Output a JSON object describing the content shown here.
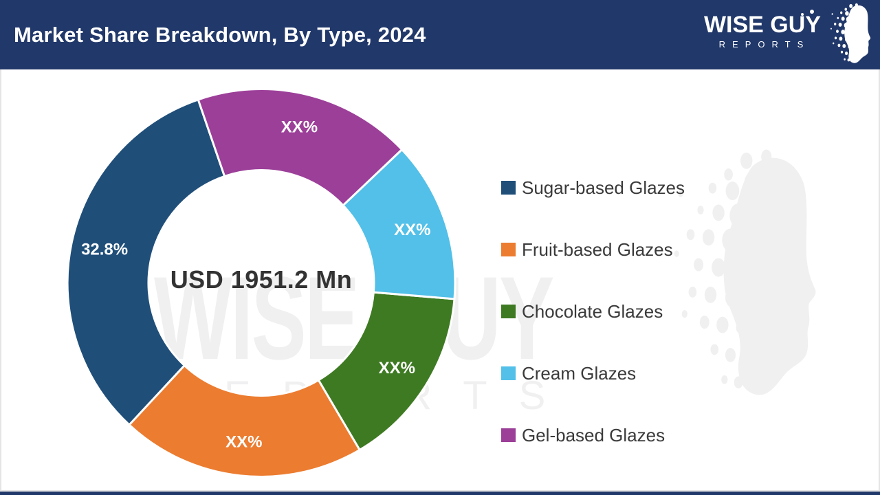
{
  "header": {
    "title": "Market Share Breakdown, By Type, 2024",
    "logo": {
      "line1": "WISE GUY",
      "line2": "REPORTS"
    }
  },
  "watermark": {
    "line1": "WISE GUY",
    "line2": "REPORTS"
  },
  "chart_data": {
    "type": "pie",
    "subtype": "donut",
    "title": "Market Share Breakdown, By Type, 2024",
    "center_label": "USD 1951.2 Mn",
    "legend_position": "right",
    "start_angle_deg": 109,
    "direction": "counterclockwise",
    "note": "Only the Sugar-based slice shows a numeric label (32.8%); other slices are masked as XX% in the image, their values below are estimated from arc angles.",
    "slices": [
      {
        "name": "Sugar-based Glazes",
        "value": 32.8,
        "display_label": "32.8%",
        "color": "#1f4e79"
      },
      {
        "name": "Fruit-based Glazes",
        "value": 20.4,
        "display_label": "XX%",
        "color": "#ec7c30"
      },
      {
        "name": "Chocolate Glazes",
        "value": 15.2,
        "display_label": "XX%",
        "color": "#3e7a22"
      },
      {
        "name": "Cream Glazes",
        "value": 13.4,
        "display_label": "XX%",
        "color": "#52c0e8"
      },
      {
        "name": "Gel-based Glazes",
        "value": 18.2,
        "display_label": "XX%",
        "color": "#9c3f99"
      }
    ]
  },
  "colors": {
    "header_bg": "#21386a",
    "footer_bar": "#21386a",
    "center_text": "#333333",
    "legend_text": "#3a3a3a",
    "watermark": "#f0f0f1",
    "slice_separator": "#ffffff"
  }
}
